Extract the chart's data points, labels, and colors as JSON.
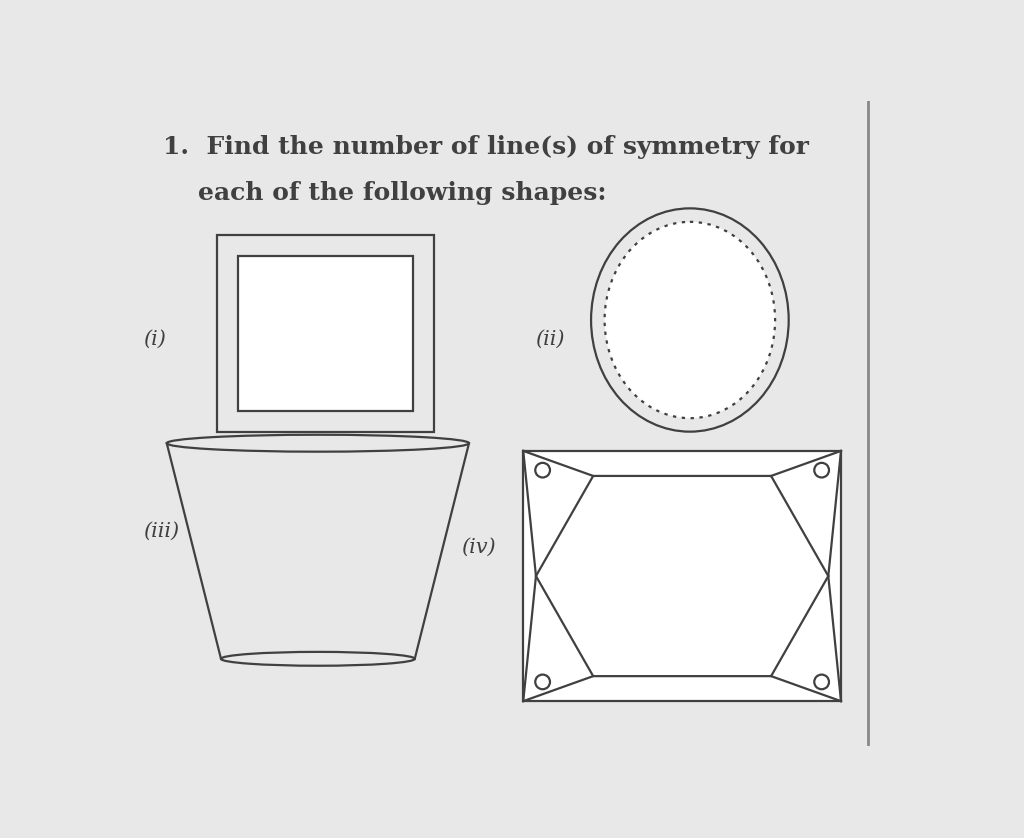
{
  "bg_color": "#e8e8e8",
  "paper_color": "#dcdcdc",
  "line_color": "#404040",
  "label_i": "(i)",
  "label_ii": "(ii)",
  "label_iii": "(iii)",
  "label_iv": "(iv)",
  "title_line1": "1.  Find the number of line(s) of symmetry for",
  "title_line2": "    each of the following shapes:",
  "font_size_title": 18,
  "font_size_labels": 15
}
